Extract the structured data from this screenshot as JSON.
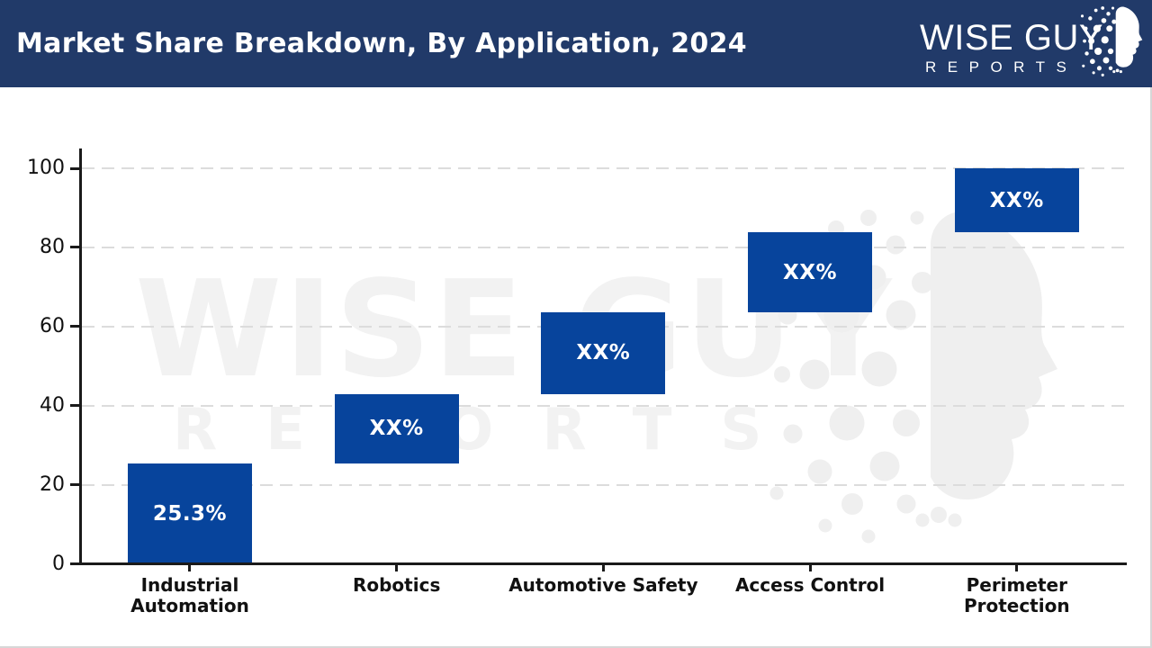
{
  "header": {
    "title": "Market Share Breakdown, By Application, 2024",
    "bg_color": "#213A69",
    "logo": {
      "line1": "WISE GUY",
      "line2": "REPORTS"
    }
  },
  "watermark": {
    "line1": "WISE GUY",
    "line2": "REPORTS"
  },
  "chart_data": {
    "type": "bar",
    "subtype": "waterfall",
    "title": "Market Share Breakdown, By Application, 2024",
    "categories": [
      "Industrial\nAutomation",
      "Robotics",
      "Automotive Safety",
      "Access Control",
      "Perimeter\nProtection"
    ],
    "segments": [
      {
        "category": "Industrial Automation",
        "start": 0,
        "end": 25.3,
        "label": "25.3%"
      },
      {
        "category": "Robotics",
        "start": 25.3,
        "end": 43.0,
        "label": "XX%"
      },
      {
        "category": "Automotive Safety",
        "start": 43.0,
        "end": 63.5,
        "label": "XX%"
      },
      {
        "category": "Access Control",
        "start": 63.5,
        "end": 83.8,
        "label": "XX%"
      },
      {
        "category": "Perimeter Protection",
        "start": 83.8,
        "end": 100,
        "label": "XX%"
      }
    ],
    "ylim": [
      0,
      100
    ],
    "yticks": [
      0,
      20,
      40,
      60,
      80,
      100
    ],
    "grid": "horizontal-dashed",
    "legend": "none",
    "colors": {
      "bar": "#07449C",
      "bar_label": "#FFFFFF",
      "grid": "#DCDCDC",
      "axis": "#1A1A1A",
      "tick_label": "#111111",
      "watermark": "#F2F2F2"
    }
  }
}
